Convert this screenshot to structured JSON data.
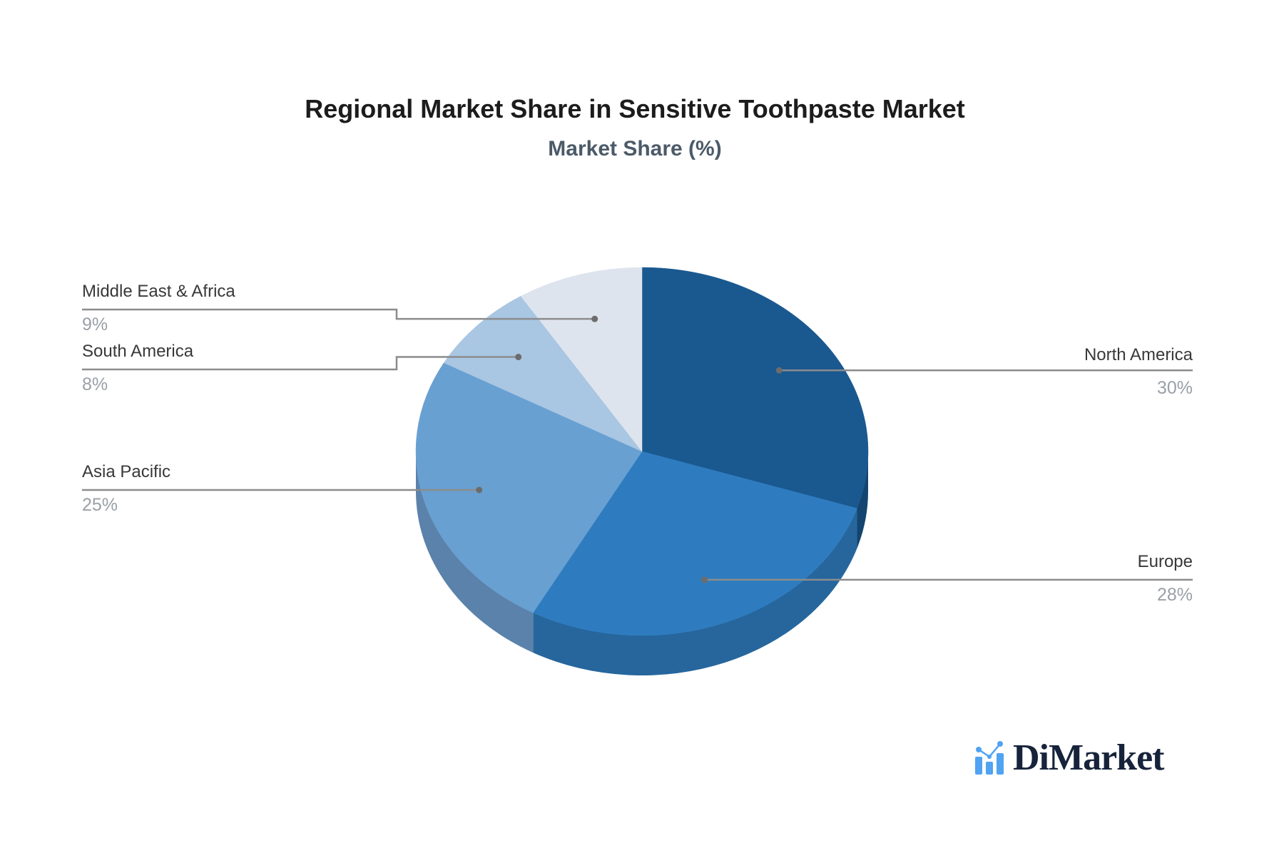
{
  "chart_data": {
    "type": "pie",
    "style": "3d",
    "title": "Regional Market Share in Sensitive Toothpaste Market",
    "subtitle": "Market Share (%)",
    "start_angle_deg": 0,
    "direction": "clockwise",
    "categories": [
      "North America",
      "Europe",
      "Asia Pacific",
      "South America",
      "Middle East & Africa"
    ],
    "values": [
      30,
      28,
      25,
      8,
      9
    ],
    "percent_labels": [
      "30%",
      "28%",
      "25%",
      "8%",
      "9%"
    ],
    "colors": [
      "#1A5890",
      "#2E7CBF",
      "#68A0D2",
      "#A9C6E2",
      "#DEE4EE"
    ],
    "side_colors": [
      "#144570",
      "#26669D",
      "#5B82AB",
      "#8AA3BD",
      "#B8C2D1"
    ],
    "connector_color": "#8C8C8C",
    "dot_color": "#6C6C6C",
    "label_color": "#383838",
    "value_color": "#9AA0A6",
    "title_color": "#1C1C1C",
    "subtitle_color": "#4B5A68",
    "legend": "none",
    "grid": "off"
  },
  "logo": {
    "text": "DiMarket",
    "icon": "bar-chart-logo-icon",
    "text_color": "#17233B",
    "icon_color": "#4FA3F2"
  }
}
